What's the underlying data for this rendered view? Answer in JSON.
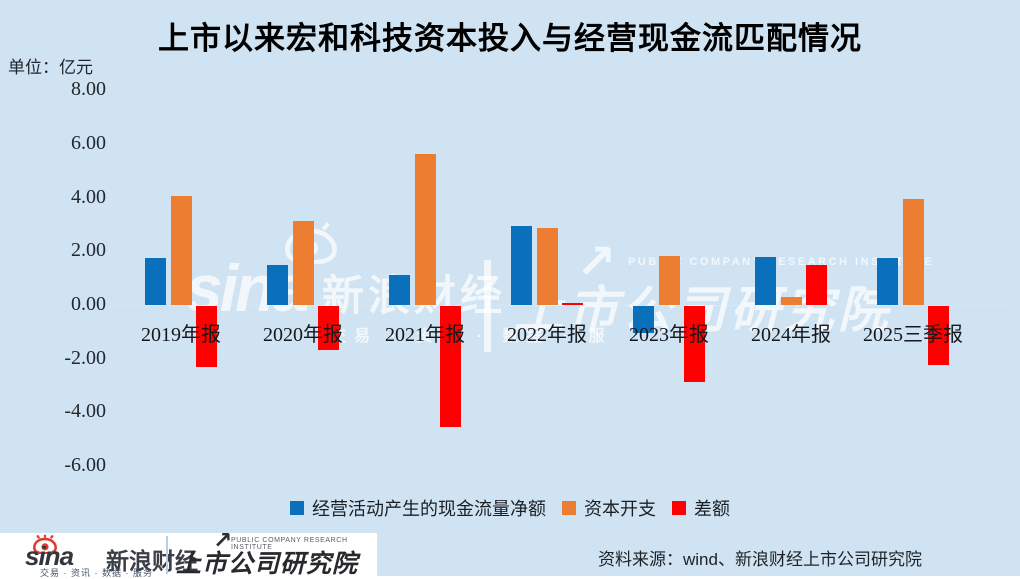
{
  "title": "上市以来宏和科技资本投入与经营现金流匹配情况",
  "unit_label": "单位：亿元",
  "chart_data": {
    "type": "bar",
    "title": "上市以来宏和科技资本投入与经营现金流匹配情况",
    "unit": "亿元",
    "categories": [
      "2019年报",
      "2020年报",
      "2021年报",
      "2022年报",
      "2023年报",
      "2024年报",
      "2025三季报"
    ],
    "series": [
      {
        "name": "经营活动产生的现金流量净额",
        "color": "#0b70bb",
        "values": [
          1.76,
          1.49,
          1.12,
          2.94,
          -0.99,
          1.8,
          1.74
        ]
      },
      {
        "name": "资本开支",
        "color": "#ed7d31",
        "values": [
          4.05,
          3.14,
          5.61,
          2.86,
          1.83,
          0.31,
          3.95
        ]
      },
      {
        "name": "差额",
        "color": "#fe0000",
        "values": [
          -2.29,
          -1.65,
          -4.49,
          0.08,
          -2.82,
          1.48,
          -2.21
        ]
      }
    ],
    "ylim": [
      -6,
      8
    ],
    "ytick_step": 2,
    "ytick_values": [
      8,
      6,
      4,
      2,
      0,
      -2,
      -4,
      -6
    ],
    "ytick_labels": [
      "8.00",
      "6.00",
      "4.00",
      "2.00",
      "0.00",
      "-2.00",
      "-4.00",
      "-6.00"
    ],
    "grid": false,
    "legend_position": "bottom",
    "background_color": "#cfe3f2"
  },
  "watermark": {
    "brand": "sina",
    "brand_name": "新浪财经",
    "tagline": "交易 · 资讯 · 数据 · 服",
    "arrow": "↗",
    "institute_caps": "PUBLIC COMPANY RESEARCH INSTITUTE",
    "institute_name": "上市公司研究院"
  },
  "footer": {
    "sina_logo": {
      "brand": "sina",
      "name": "新浪财经",
      "tagline": "交易 · 资讯 · 数据 · 服务"
    },
    "institute_logo": {
      "arrow": "↗",
      "caps": "PUBLIC COMPANY RESEARCH INSTITUTE",
      "name": "上市公司研究院"
    },
    "source": "资料来源：wind、新浪财经上市公司研究院"
  }
}
